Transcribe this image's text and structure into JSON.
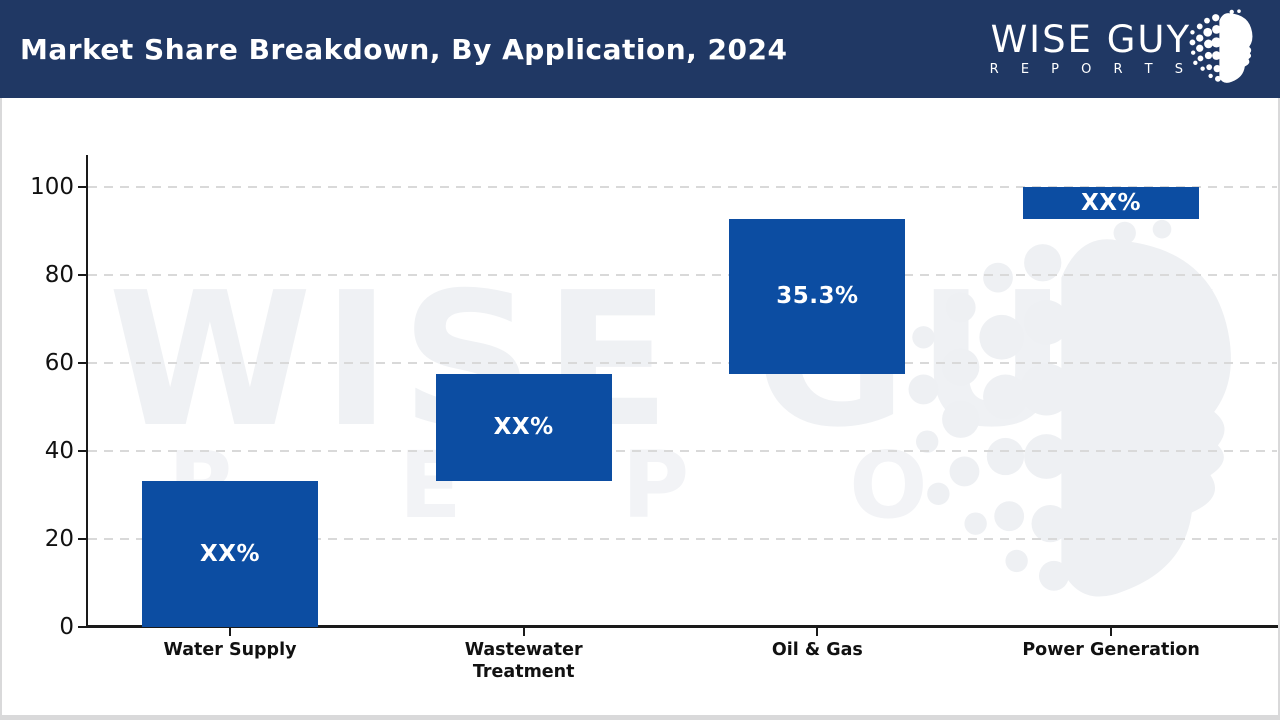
{
  "header": {
    "title": "Market Share Breakdown, By Application, 2024"
  },
  "logo": {
    "name": "WISE GUY",
    "subtitle": "R E P O R T S"
  },
  "watermark": {
    "line1": "WISE GUY",
    "line2": "R E P O R T S"
  },
  "chart_data": {
    "type": "bar",
    "subtype": "waterfall",
    "title": "Market Share Breakdown, By Application, 2024",
    "categories": [
      "Water Supply",
      "Wastewater Treatment",
      "Oil & Gas",
      "Power Generation"
    ],
    "segments": [
      {
        "category": "Water Supply",
        "start": 0,
        "end": 33.2,
        "label": "XX%"
      },
      {
        "category": "Wastewater Treatment",
        "start": 33.2,
        "end": 57.5,
        "label": "XX%"
      },
      {
        "category": "Oil & Gas",
        "start": 57.5,
        "end": 92.8,
        "label": "35.3%"
      },
      {
        "category": "Power Generation",
        "start": 92.8,
        "end": 100,
        "label": "XX%"
      }
    ],
    "yticks": [
      0,
      20,
      40,
      60,
      80,
      100
    ],
    "ylim": [
      0,
      107
    ],
    "xlabel": "",
    "ylabel": "",
    "grid": "horizontal-dashed",
    "legend": false
  },
  "colors": {
    "header_bg": "#203864",
    "bar": "#0c4da2",
    "grid": "#d9d9d9",
    "axis": "#1a1a1a",
    "watermark": "#eff1f4",
    "frame": "#d9d9da",
    "bar_label": "#ffffff"
  }
}
